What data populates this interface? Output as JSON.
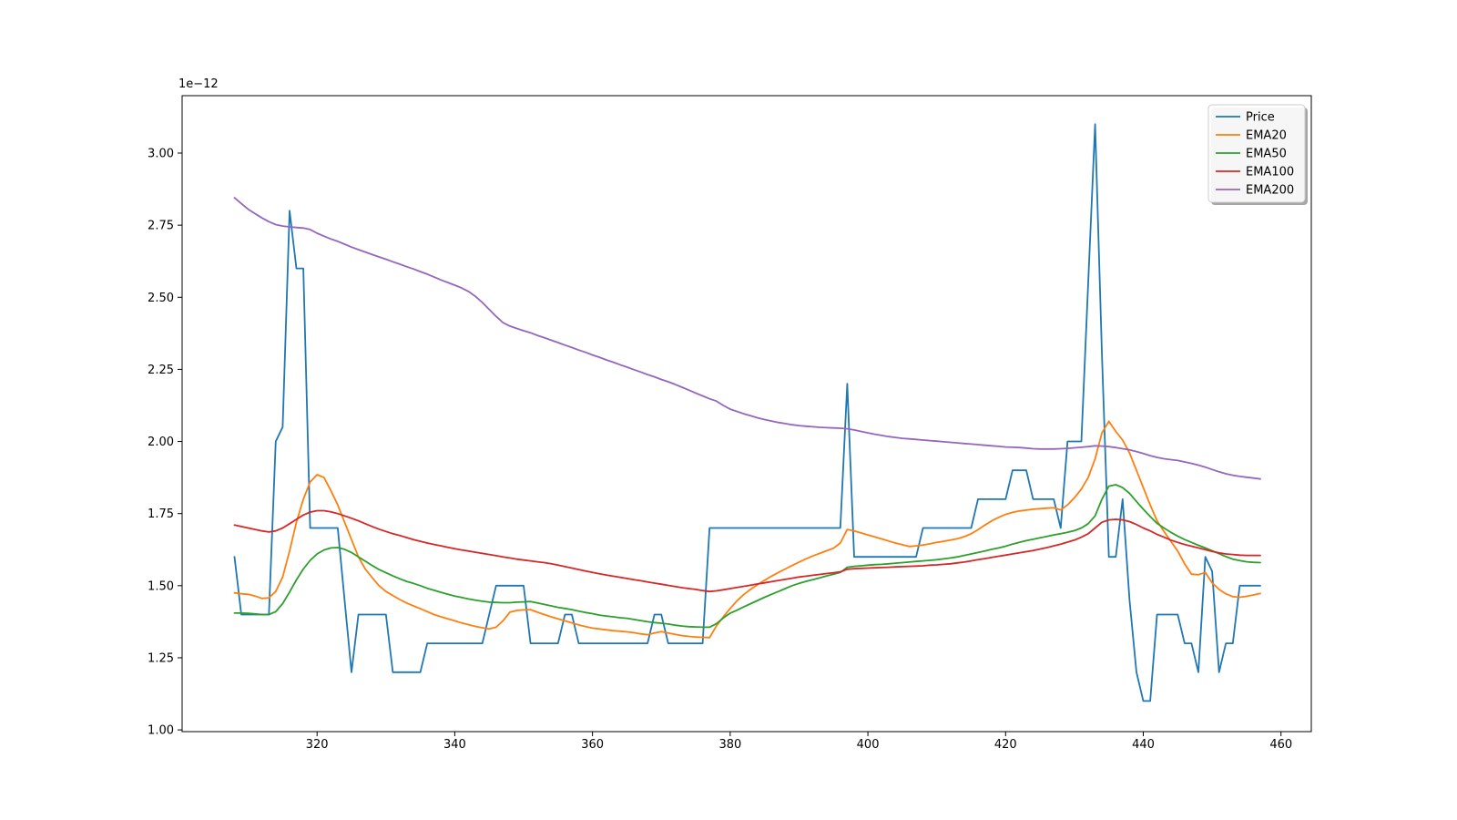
{
  "figure": {
    "background": "#ffffff"
  },
  "chart_data": {
    "type": "line",
    "title": "",
    "xlabel": "",
    "ylabel": "",
    "offset_text": "1e−12",
    "grid": false,
    "legend_position": "upper right",
    "x_ticks": [
      320,
      340,
      360,
      380,
      400,
      420,
      440,
      460
    ],
    "y_tick_labels": [
      "1.00",
      "1.25",
      "1.50",
      "1.75",
      "2.00",
      "2.25",
      "2.50",
      "2.75",
      "3.00"
    ],
    "y_tick_values": [
      1.0,
      1.25,
      1.5,
      1.75,
      2.0,
      2.25,
      2.5,
      2.75,
      3.0
    ],
    "xlim": [
      300.4,
      464.4
    ],
    "ylim": [
      0.994,
      3.199
    ],
    "x_start": 308,
    "x_step": 1,
    "series": [
      {
        "name": "Price",
        "color": "#1f77b4",
        "values": [
          1.6,
          1.4,
          1.4,
          1.4,
          1.4,
          1.4,
          2.0,
          2.05,
          2.8,
          2.6,
          2.6,
          1.7,
          1.7,
          1.7,
          1.7,
          1.7,
          1.45,
          1.2,
          1.4,
          1.4,
          1.4,
          1.4,
          1.4,
          1.2,
          1.2,
          1.2,
          1.2,
          1.2,
          1.3,
          1.3,
          1.3,
          1.3,
          1.3,
          1.3,
          1.3,
          1.3,
          1.3,
          1.4,
          1.5,
          1.5,
          1.5,
          1.5,
          1.5,
          1.3,
          1.3,
          1.3,
          1.3,
          1.3,
          1.4,
          1.4,
          1.3,
          1.3,
          1.3,
          1.3,
          1.3,
          1.3,
          1.3,
          1.3,
          1.3,
          1.3,
          1.3,
          1.4,
          1.4,
          1.3,
          1.3,
          1.3,
          1.3,
          1.3,
          1.3,
          1.7,
          1.7,
          1.7,
          1.7,
          1.7,
          1.7,
          1.7,
          1.7,
          1.7,
          1.7,
          1.7,
          1.7,
          1.7,
          1.7,
          1.7,
          1.7,
          1.7,
          1.7,
          1.7,
          1.7,
          2.2,
          1.6,
          1.6,
          1.6,
          1.6,
          1.6,
          1.6,
          1.6,
          1.6,
          1.6,
          1.6,
          1.7,
          1.7,
          1.7,
          1.7,
          1.7,
          1.7,
          1.7,
          1.7,
          1.8,
          1.8,
          1.8,
          1.8,
          1.8,
          1.9,
          1.9,
          1.9,
          1.8,
          1.8,
          1.8,
          1.8,
          1.7,
          2.0,
          2.0,
          2.0,
          2.55,
          3.1,
          2.3,
          1.6,
          1.6,
          1.8,
          1.45,
          1.2,
          1.1,
          1.1,
          1.4,
          1.4,
          1.4,
          1.4,
          1.3,
          1.3,
          1.2,
          1.6,
          1.55,
          1.2,
          1.3,
          1.3,
          1.5,
          1.5,
          1.5,
          1.5
        ]
      },
      {
        "name": "EMA20",
        "color": "#ff7f0e",
        "values": [
          1.475,
          1.472,
          1.47,
          1.464,
          1.456,
          1.458,
          1.48,
          1.53,
          1.62,
          1.72,
          1.8,
          1.86,
          1.885,
          1.875,
          1.83,
          1.78,
          1.72,
          1.66,
          1.6,
          1.558,
          1.528,
          1.5,
          1.48,
          1.466,
          1.452,
          1.44,
          1.43,
          1.42,
          1.41,
          1.4,
          1.392,
          1.385,
          1.378,
          1.371,
          1.365,
          1.359,
          1.354,
          1.35,
          1.356,
          1.378,
          1.408,
          1.414,
          1.416,
          1.417,
          1.408,
          1.4,
          1.392,
          1.385,
          1.378,
          1.371,
          1.364,
          1.358,
          1.353,
          1.35,
          1.347,
          1.344,
          1.342,
          1.34,
          1.337,
          1.333,
          1.33,
          1.336,
          1.341,
          1.336,
          1.331,
          1.327,
          1.324,
          1.322,
          1.321,
          1.32,
          1.36,
          1.392,
          1.421,
          1.448,
          1.47,
          1.488,
          1.504,
          1.519,
          1.533,
          1.546,
          1.558,
          1.57,
          1.582,
          1.593,
          1.603,
          1.612,
          1.621,
          1.63,
          1.648,
          1.695,
          1.69,
          1.683,
          1.676,
          1.669,
          1.662,
          1.655,
          1.648,
          1.642,
          1.636,
          1.638,
          1.641,
          1.645,
          1.65,
          1.654,
          1.658,
          1.663,
          1.67,
          1.68,
          1.694,
          1.71,
          1.725,
          1.737,
          1.747,
          1.754,
          1.759,
          1.762,
          1.765,
          1.767,
          1.769,
          1.77,
          1.763,
          1.78,
          1.805,
          1.835,
          1.875,
          1.94,
          2.03,
          2.07,
          2.035,
          2.005,
          1.96,
          1.9,
          1.84,
          1.78,
          1.725,
          1.688,
          1.654,
          1.62,
          1.576,
          1.54,
          1.538,
          1.546,
          1.51,
          1.487,
          1.472,
          1.462,
          1.46,
          1.463,
          1.468,
          1.473
        ]
      },
      {
        "name": "EMA50",
        "color": "#2ca02c",
        "values": [
          1.405,
          1.405,
          1.404,
          1.402,
          1.4,
          1.4,
          1.41,
          1.438,
          1.478,
          1.52,
          1.558,
          1.588,
          1.61,
          1.624,
          1.631,
          1.632,
          1.626,
          1.615,
          1.6,
          1.585,
          1.57,
          1.556,
          1.545,
          1.534,
          1.524,
          1.515,
          1.508,
          1.5,
          1.491,
          1.484,
          1.477,
          1.47,
          1.464,
          1.459,
          1.454,
          1.45,
          1.446,
          1.443,
          1.442,
          1.441,
          1.441,
          1.443,
          1.444,
          1.445,
          1.44,
          1.435,
          1.43,
          1.425,
          1.421,
          1.417,
          1.412,
          1.407,
          1.403,
          1.398,
          1.395,
          1.392,
          1.389,
          1.387,
          1.383,
          1.379,
          1.375,
          1.372,
          1.37,
          1.367,
          1.363,
          1.36,
          1.358,
          1.357,
          1.356,
          1.356,
          1.368,
          1.388,
          1.405,
          1.415,
          1.427,
          1.438,
          1.449,
          1.46,
          1.47,
          1.48,
          1.49,
          1.5,
          1.508,
          1.515,
          1.521,
          1.527,
          1.534,
          1.54,
          1.546,
          1.564,
          1.567,
          1.569,
          1.571,
          1.573,
          1.574,
          1.576,
          1.578,
          1.58,
          1.582,
          1.584,
          1.586,
          1.588,
          1.59,
          1.593,
          1.596,
          1.6,
          1.605,
          1.61,
          1.615,
          1.62,
          1.626,
          1.631,
          1.637,
          1.644,
          1.65,
          1.656,
          1.661,
          1.666,
          1.671,
          1.676,
          1.68,
          1.685,
          1.691,
          1.7,
          1.715,
          1.742,
          1.8,
          1.845,
          1.85,
          1.84,
          1.82,
          1.792,
          1.765,
          1.74,
          1.716,
          1.7,
          1.685,
          1.672,
          1.66,
          1.65,
          1.64,
          1.631,
          1.621,
          1.611,
          1.601,
          1.592,
          1.587,
          1.583,
          1.581,
          1.58
        ]
      },
      {
        "name": "EMA100",
        "color": "#d62728",
        "values": [
          1.71,
          1.705,
          1.7,
          1.695,
          1.69,
          1.686,
          1.69,
          1.7,
          1.715,
          1.73,
          1.745,
          1.755,
          1.76,
          1.76,
          1.756,
          1.75,
          1.742,
          1.734,
          1.725,
          1.715,
          1.705,
          1.696,
          1.688,
          1.68,
          1.674,
          1.667,
          1.66,
          1.654,
          1.648,
          1.643,
          1.638,
          1.633,
          1.628,
          1.624,
          1.62,
          1.616,
          1.612,
          1.608,
          1.604,
          1.6,
          1.596,
          1.592,
          1.589,
          1.586,
          1.583,
          1.58,
          1.576,
          1.571,
          1.566,
          1.561,
          1.556,
          1.551,
          1.546,
          1.541,
          1.537,
          1.533,
          1.529,
          1.525,
          1.521,
          1.517,
          1.513,
          1.509,
          1.505,
          1.501,
          1.497,
          1.493,
          1.49,
          1.487,
          1.483,
          1.48,
          1.482,
          1.486,
          1.49,
          1.494,
          1.498,
          1.502,
          1.506,
          1.51,
          1.514,
          1.518,
          1.522,
          1.526,
          1.53,
          1.533,
          1.536,
          1.539,
          1.542,
          1.545,
          1.548,
          1.557,
          1.559,
          1.56,
          1.561,
          1.562,
          1.563,
          1.564,
          1.565,
          1.566,
          1.567,
          1.568,
          1.569,
          1.571,
          1.572,
          1.574,
          1.576,
          1.579,
          1.582,
          1.586,
          1.59,
          1.594,
          1.598,
          1.602,
          1.606,
          1.61,
          1.614,
          1.618,
          1.622,
          1.627,
          1.632,
          1.638,
          1.644,
          1.651,
          1.658,
          1.668,
          1.68,
          1.7,
          1.72,
          1.728,
          1.73,
          1.728,
          1.722,
          1.712,
          1.7,
          1.69,
          1.678,
          1.668,
          1.658,
          1.65,
          1.643,
          1.637,
          1.631,
          1.625,
          1.619,
          1.614,
          1.61,
          1.608,
          1.606,
          1.605,
          1.605,
          1.605
        ]
      },
      {
        "name": "EMA200",
        "color": "#9467bd",
        "values": [
          2.845,
          2.825,
          2.805,
          2.79,
          2.775,
          2.762,
          2.752,
          2.747,
          2.744,
          2.742,
          2.74,
          2.735,
          2.722,
          2.712,
          2.702,
          2.694,
          2.684,
          2.674,
          2.665,
          2.657,
          2.648,
          2.64,
          2.632,
          2.623,
          2.615,
          2.606,
          2.598,
          2.589,
          2.58,
          2.57,
          2.56,
          2.551,
          2.542,
          2.532,
          2.52,
          2.503,
          2.482,
          2.458,
          2.434,
          2.412,
          2.4,
          2.392,
          2.384,
          2.377,
          2.368,
          2.36,
          2.351,
          2.343,
          2.334,
          2.326,
          2.317,
          2.309,
          2.3,
          2.292,
          2.283,
          2.275,
          2.266,
          2.258,
          2.249,
          2.241,
          2.232,
          2.224,
          2.215,
          2.207,
          2.198,
          2.188,
          2.178,
          2.168,
          2.158,
          2.148,
          2.14,
          2.125,
          2.112,
          2.104,
          2.096,
          2.089,
          2.082,
          2.076,
          2.071,
          2.066,
          2.062,
          2.058,
          2.055,
          2.053,
          2.051,
          2.049,
          2.048,
          2.047,
          2.046,
          2.044,
          2.04,
          2.035,
          2.03,
          2.025,
          2.021,
          2.017,
          2.014,
          2.011,
          2.009,
          2.007,
          2.005,
          2.003,
          2.001,
          1.999,
          1.997,
          1.995,
          1.993,
          1.991,
          1.989,
          1.987,
          1.985,
          1.983,
          1.981,
          1.98,
          1.979,
          1.977,
          1.975,
          1.974,
          1.974,
          1.974,
          1.975,
          1.976,
          1.978,
          1.98,
          1.982,
          1.985,
          1.984,
          1.982,
          1.979,
          1.975,
          1.971,
          1.965,
          1.958,
          1.951,
          1.945,
          1.94,
          1.937,
          1.934,
          1.929,
          1.924,
          1.918,
          1.911,
          1.903,
          1.895,
          1.888,
          1.883,
          1.879,
          1.876,
          1.873,
          1.87
        ]
      }
    ],
    "legend_entries": [
      "Price",
      "EMA20",
      "EMA50",
      "EMA100",
      "EMA200"
    ]
  }
}
